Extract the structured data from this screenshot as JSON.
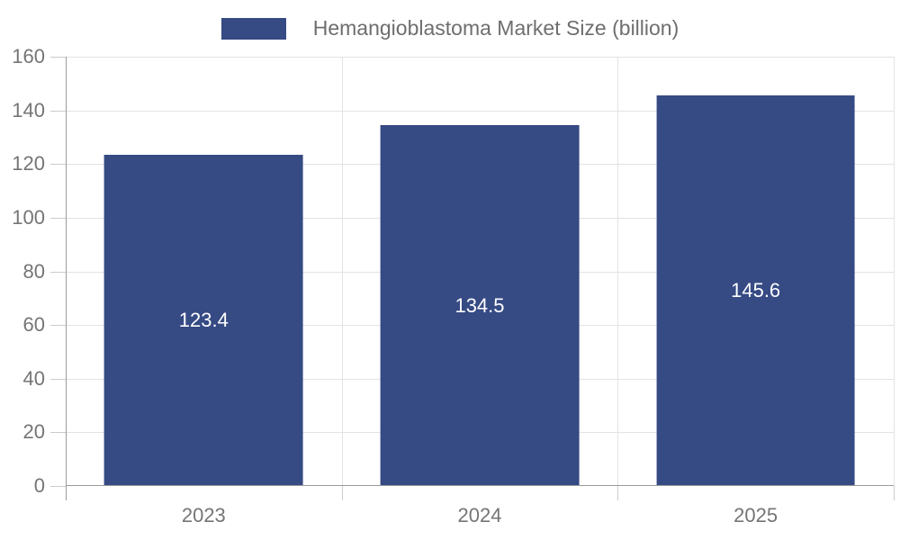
{
  "chart_data": {
    "type": "bar",
    "title": "Hemangioblastoma Market Size (billion)",
    "categories": [
      "2023",
      "2024",
      "2025"
    ],
    "values": [
      123.4,
      134.5,
      145.6
    ],
    "bar_labels": [
      "123.4",
      "134.5",
      "145.6"
    ],
    "ylim": [
      0,
      160
    ],
    "ytick_step": 20,
    "ytick_labels": [
      "0",
      "20",
      "40",
      "60",
      "80",
      "100",
      "120",
      "140",
      "160"
    ],
    "grid": true,
    "legend_position": "top",
    "xlabel": "",
    "ylabel": "",
    "colors": {
      "bar": "#364A84",
      "bar_label": "#FFFFFF",
      "grid_line": "#E3E3E3",
      "axis_line": "#9B9B9B",
      "tick": "#CCCCCC",
      "axis_text": "#757575",
      "legend_text": "#6E6E6E",
      "background": "#FFFFFF"
    }
  }
}
